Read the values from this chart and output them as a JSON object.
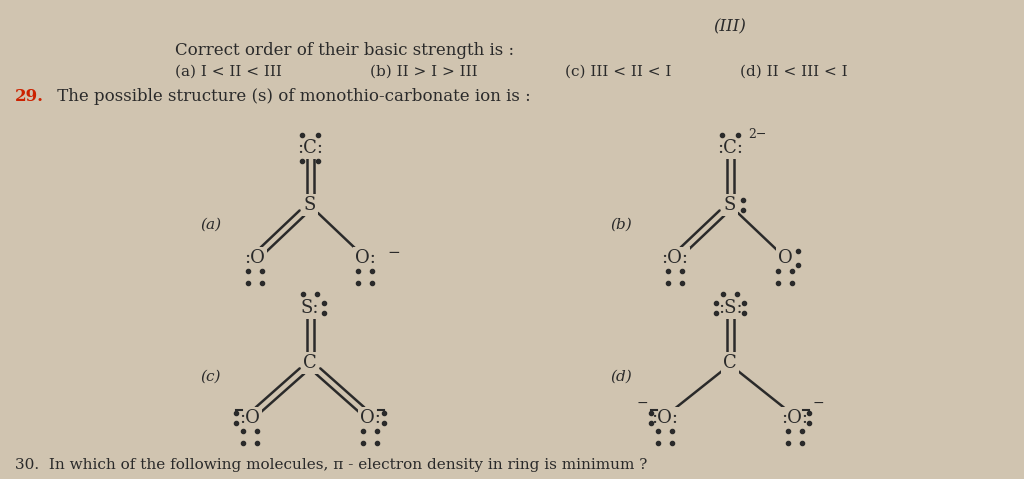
{
  "background_color": "#d0c4b0",
  "text_color": "#2a2a2a",
  "fig_width": 10.24,
  "fig_height": 4.79,
  "top_right": "(III)",
  "title_line": "Correct order of their basic strength is :",
  "opt_a": "(a) I < II < III",
  "opt_b": "(b) II > I > III",
  "opt_c": "(c) III < II < I",
  "opt_d": "(d) II < III < I",
  "q_num": "29.",
  "q_text": " The possible structure (s) of monothio-carbonate ion is :",
  "bottom": "30.  In which of the following molecules, π - electron density in ring is minimum ?"
}
